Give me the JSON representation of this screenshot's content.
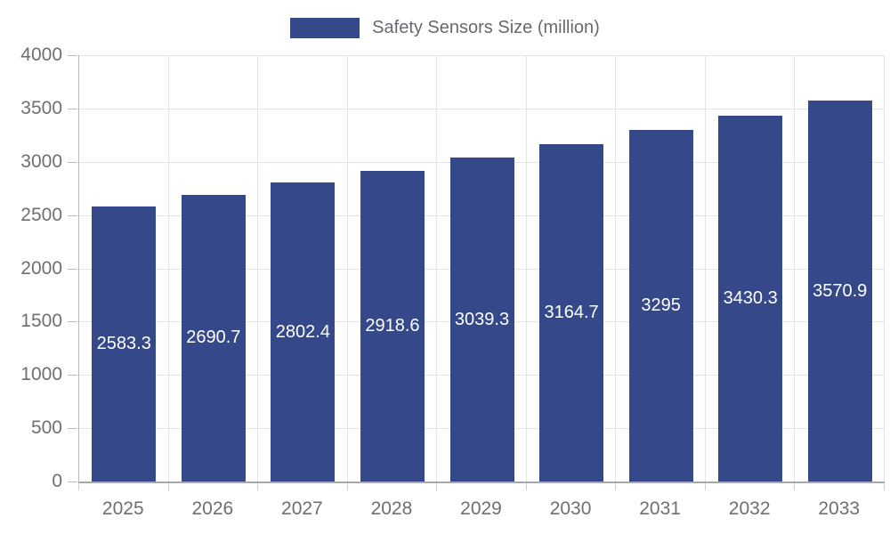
{
  "chart_data": {
    "type": "bar",
    "title": "Safety Sensors Size (million)",
    "legend_position": "top",
    "categories": [
      "2025",
      "2026",
      "2027",
      "2028",
      "2029",
      "2030",
      "2031",
      "2032",
      "2033"
    ],
    "series": [
      {
        "name": "Safety Sensors Size (million)",
        "values": [
          2583.3,
          2690.7,
          2802.4,
          2918.6,
          3039.3,
          3164.7,
          3295,
          3430.3,
          3570.9
        ]
      }
    ],
    "data_labels": [
      "2583.3",
      "2690.7",
      "2802.4",
      "2918.6",
      "3039.3",
      "3164.7",
      "3295",
      "3430.3",
      "3570.9"
    ],
    "xlabel": "",
    "ylabel": "",
    "ylim": [
      0,
      4000
    ],
    "yticks": [
      0,
      500,
      1000,
      1500,
      2000,
      2500,
      3000,
      3500,
      4000
    ],
    "grid": true,
    "bar_color": "#35488a",
    "data_label_color": "#ffffff",
    "axis_text_color": "#6d6f73",
    "grid_color": "#e4e4e6"
  }
}
